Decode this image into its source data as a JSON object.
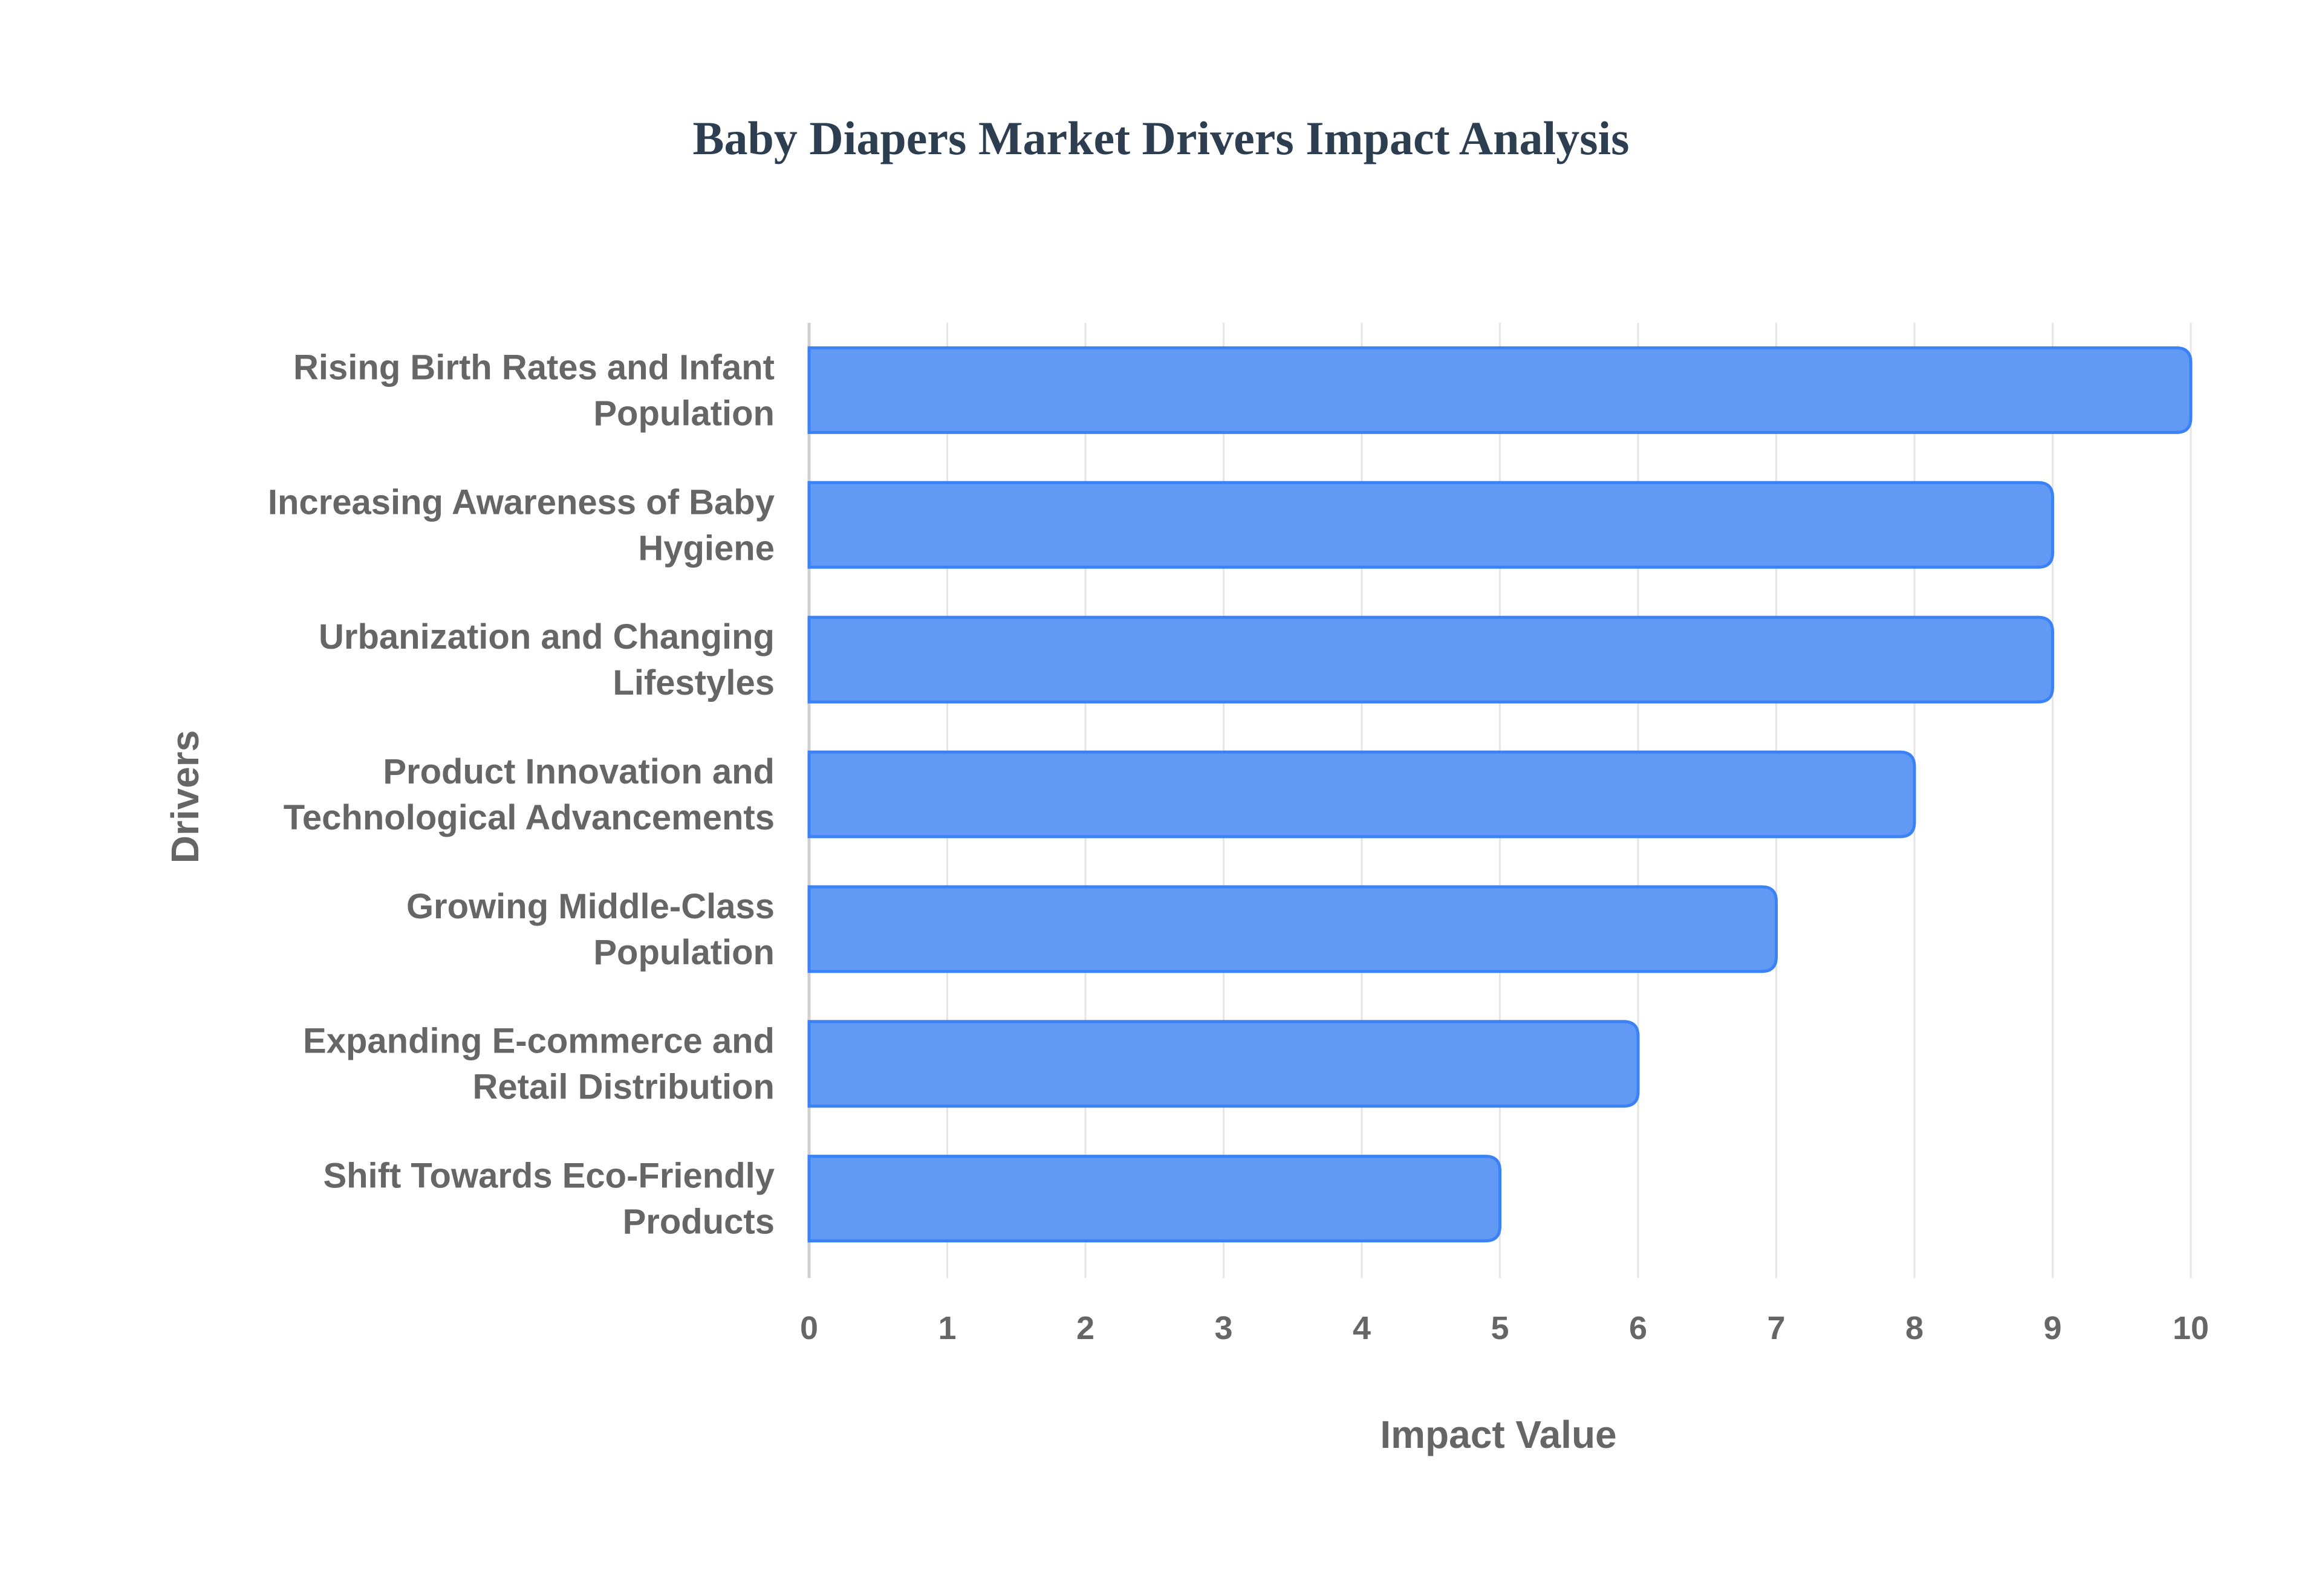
{
  "chart_data": {
    "type": "bar",
    "orientation": "horizontal",
    "title": "Baby Diapers Market Drivers Impact Analysis",
    "xlabel": "Impact Value",
    "ylabel": "Drivers",
    "xlim": [
      0,
      10
    ],
    "xticks": [
      "0",
      "1",
      "2",
      "3",
      "4",
      "5",
      "6",
      "7",
      "8",
      "9",
      "10"
    ],
    "grid": true,
    "categories": [
      [
        "Rising Birth Rates and Infant",
        "Population"
      ],
      [
        "Increasing Awareness of Baby",
        "Hygiene"
      ],
      [
        "Urbanization and Changing",
        "Lifestyles"
      ],
      [
        "Product Innovation and",
        "Technological Advancements"
      ],
      [
        "Growing Middle-Class",
        "Population"
      ],
      [
        "Expanding E-commerce and",
        "Retail Distribution"
      ],
      [
        "Shift Towards Eco-Friendly",
        "Products"
      ]
    ],
    "values": [
      10,
      9,
      9,
      8,
      7,
      6,
      5
    ],
    "colors": {
      "bar_fill": "#6199f5",
      "bar_border": "#3b82f6",
      "grid": "#e5e5e5",
      "title": "#2c3e50",
      "text": "#666666"
    }
  }
}
